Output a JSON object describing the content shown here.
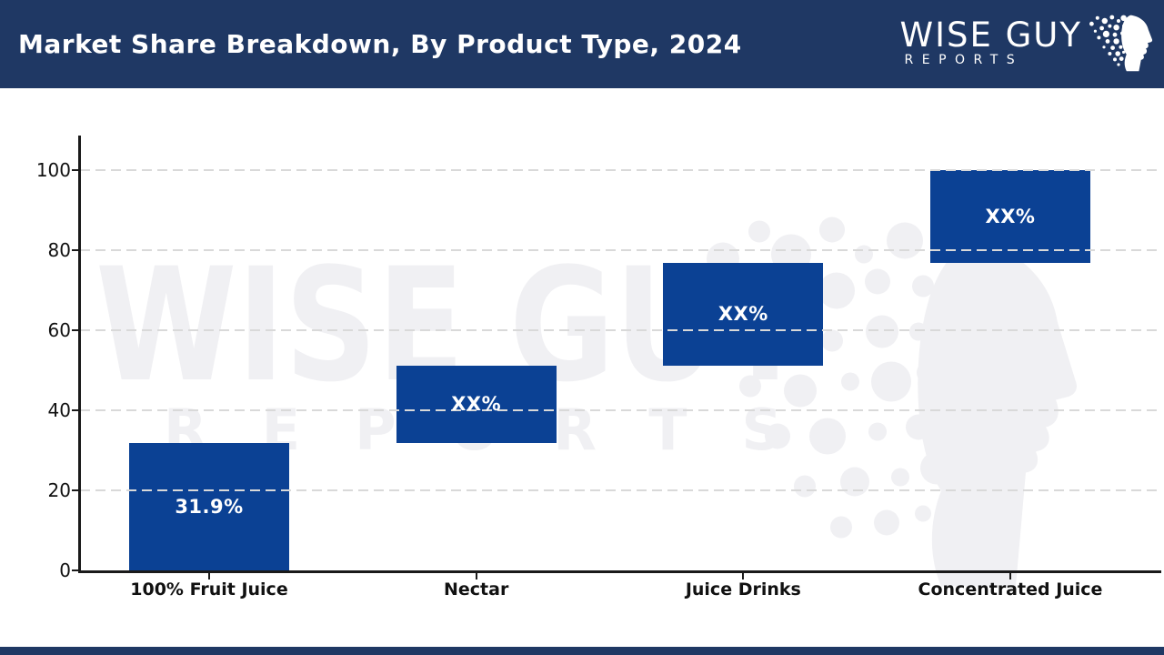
{
  "header": {
    "title": "Market Share Breakdown, By Product Type, 2024",
    "bg_color": "#1f3864",
    "logo": {
      "line1": "WISE GUY",
      "line2": "REPORTS"
    }
  },
  "watermark": {
    "line1": "WISE GUY",
    "line2": "REPORTS"
  },
  "chart_data": {
    "type": "bar",
    "subtype": "waterfall",
    "title": "Market Share Breakdown, By Product Type, 2024",
    "categories": [
      "100% Fruit Juice",
      "Nectar",
      "Juice Drinks",
      "Concentrated Juice"
    ],
    "segments": [
      {
        "category": "100% Fruit Juice",
        "start": 0,
        "end": 31.9,
        "label": "31.9%"
      },
      {
        "category": "Nectar",
        "start": 31.9,
        "end": 51.1,
        "label": "XX%"
      },
      {
        "category": "Juice Drinks",
        "start": 51.1,
        "end": 76.9,
        "label": "XX%"
      },
      {
        "category": "Concentrated Juice",
        "start": 76.9,
        "end": 100,
        "label": "XX%"
      }
    ],
    "y_ticks": [
      0,
      20,
      40,
      60,
      80,
      100
    ],
    "ylim": [
      0,
      108
    ],
    "xlabel": "",
    "ylabel": "",
    "legend": "none",
    "grid": {
      "axis": "y",
      "style": "dashed",
      "color": "#d9d9d9"
    },
    "bar_color": "#0b4194",
    "bar_label_color": "#ffffff"
  }
}
